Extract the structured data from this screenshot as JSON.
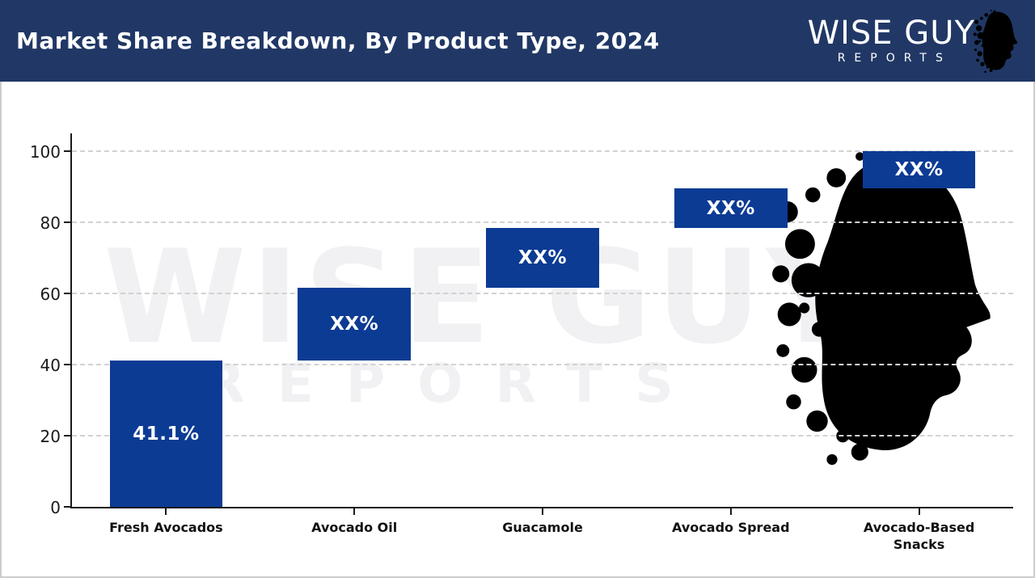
{
  "header": {
    "title": "Market Share Breakdown, By Product Type, 2024",
    "logo": {
      "line1": "WISE GUY",
      "line2": "REPORTS"
    }
  },
  "watermark": {
    "line1": "WISE GUY",
    "line2": "REPORTS"
  },
  "chart_data": {
    "type": "bar",
    "subtype": "waterfall",
    "title": "Market Share Breakdown, By Product Type, 2024",
    "categories": [
      "Fresh Avocados",
      "Avocado Oil",
      "Guacamole",
      "Avocado Spread",
      "Avocado-Based Snacks"
    ],
    "segments": [
      {
        "category": "Fresh Avocados",
        "start": 0,
        "end": 41.1,
        "label": "41.1%"
      },
      {
        "category": "Avocado Oil",
        "start": 41.1,
        "end": 61.5,
        "label": "XX%"
      },
      {
        "category": "Guacamole",
        "start": 61.5,
        "end": 78.3,
        "label": "XX%"
      },
      {
        "category": "Avocado Spread",
        "start": 78.3,
        "end": 89.6,
        "label": "XX%"
      },
      {
        "category": "Avocado-Based Snacks",
        "start": 89.6,
        "end": 100,
        "label": "XX%"
      }
    ],
    "y_ticks": [
      0,
      20,
      40,
      60,
      80,
      100
    ],
    "ylim": [
      0,
      105
    ],
    "xlabel": "",
    "ylabel": "",
    "grid": true,
    "legend": "none",
    "bar_color": "#0c3b94",
    "bar_label_color": "#ffffff"
  },
  "colors": {
    "header_bg": "#213866",
    "bar": "#0c3b94",
    "gridline": "#d2d2d2",
    "axis": "#1a1a1a",
    "watermark": "#f1f1f3",
    "title_text": "#ffffff"
  }
}
